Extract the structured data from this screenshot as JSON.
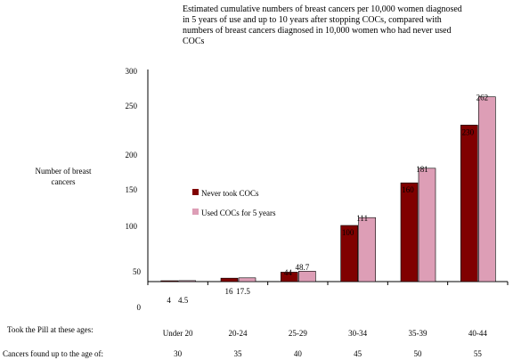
{
  "chart_data": {
    "type": "bar",
    "title_lines": [
      "Estimated cumulative numbers of breast cancers per 10,000 women diagnosed",
      "in 5 years of use and up to 10 years after stopping COCs, compared with",
      "numbers of breast cancers diagnosed in 10,000 women who had never used",
      "COCs"
    ],
    "ylabel_lines": [
      "Number of breast",
      "cancers"
    ],
    "ytick_labels": [
      "300",
      "250",
      "200",
      "150",
      "100",
      "50",
      "0"
    ],
    "row_labels": {
      "age_used": "Took the Pill at these ages:",
      "age_found": "Cancers found up to the age of:"
    },
    "categories": [
      "Under 20",
      "20-24",
      "25-29",
      "30-34",
      "35-39",
      "40-44"
    ],
    "found_ages": [
      "30",
      "35",
      "40",
      "45",
      "50",
      "55"
    ],
    "legend_position": "center-left",
    "series": [
      {
        "name": "Never took COCs",
        "color": "#800000",
        "values": [
          4,
          16,
          44,
          100,
          160,
          230
        ],
        "labels": [
          "4",
          "16",
          "44",
          "100",
          "160",
          "230"
        ]
      },
      {
        "name": "Used COCs for 5 years",
        "color": "#dd9eb6",
        "values": [
          4.5,
          17.5,
          48.7,
          111,
          181,
          262
        ],
        "labels": [
          "4.5",
          "17.5",
          "48.7",
          "111",
          "181",
          "262"
        ]
      }
    ]
  }
}
